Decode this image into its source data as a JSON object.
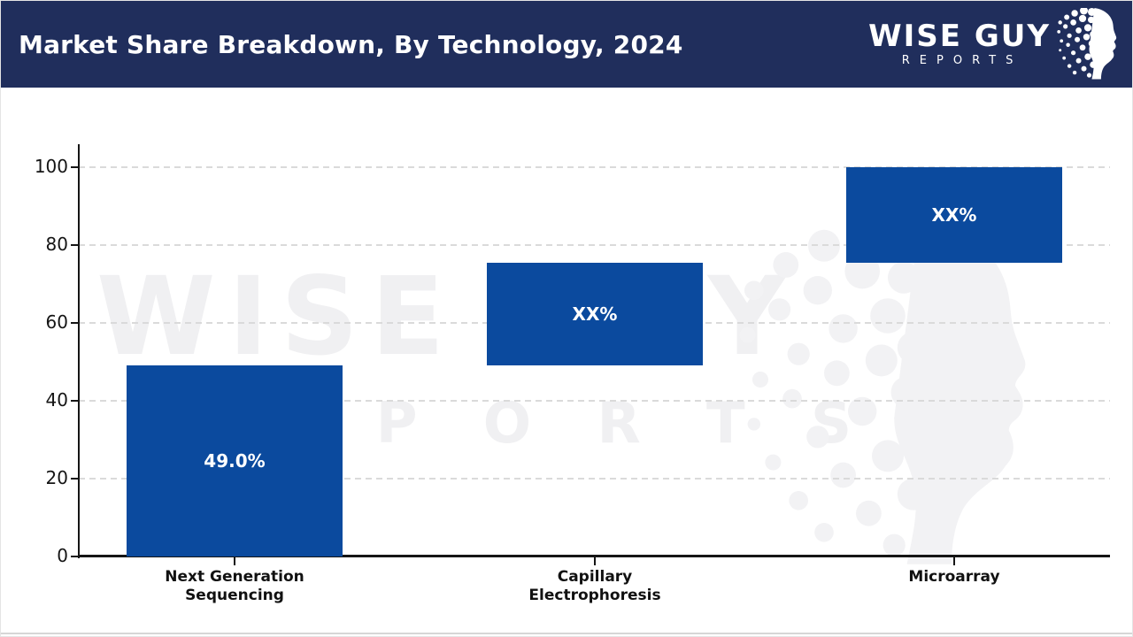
{
  "header": {
    "title": "Market Share Breakdown, By Technology, 2024",
    "logo": {
      "line1": "WISE GUY",
      "line2": "REPORTS"
    }
  },
  "watermark": {
    "line1": "WISE GUY",
    "line2": "R E P O R T S"
  },
  "chart_data": {
    "type": "bar",
    "subtype": "floating-segment-waterfall",
    "title": "Market Share Breakdown, By Technology, 2024",
    "categories": [
      "Next Generation Sequencing",
      "Capillary Electrophoresis",
      "Microarray"
    ],
    "series": [
      {
        "category": "Next Generation Sequencing",
        "base": 0,
        "top": 49.0,
        "label": "49.0%"
      },
      {
        "category": "Capillary Electrophoresis",
        "base": 49.0,
        "top": 75.5,
        "label": "XX%"
      },
      {
        "category": "Microarray",
        "base": 75.5,
        "top": 100.0,
        "label": "XX%"
      }
    ],
    "yticks": [
      0,
      20,
      40,
      60,
      80,
      100
    ],
    "ylim": [
      0,
      105
    ],
    "xlabel": "",
    "ylabel": "",
    "grid": "horizontal-dashed",
    "legend": "none",
    "bar_color": "#0b4a9e",
    "bar_label_color": "#ffffff"
  },
  "colors": {
    "header_bg": "#202e5c",
    "bar": "#0b4a9e",
    "grid": "#dadada",
    "axis": "#151515",
    "watermark": "#f0f0f2"
  }
}
